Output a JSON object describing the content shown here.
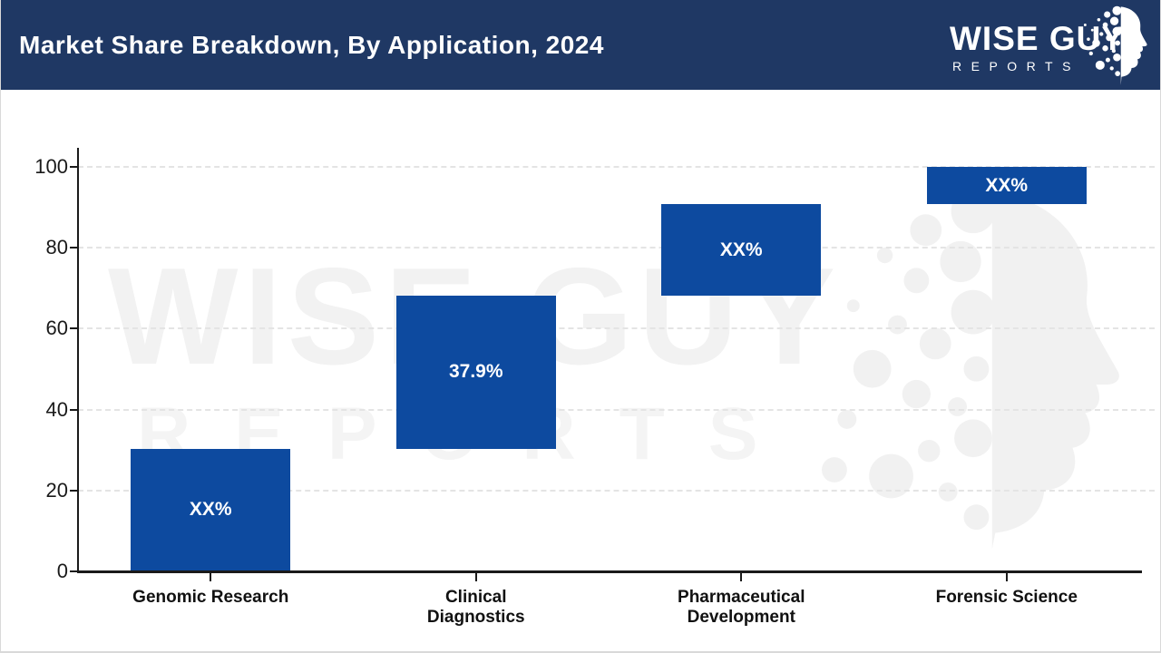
{
  "header": {
    "title": "Market Share Breakdown, By Application, 2024",
    "logo": {
      "line1": "WISE GUY",
      "line2": "REPORTS"
    }
  },
  "watermark": {
    "line1": "WISE GUY",
    "line2": "REPORTS"
  },
  "chart_data": {
    "type": "bar",
    "subtype": "floating-waterfall",
    "title": "Market Share Breakdown, By Application, 2024",
    "categories": [
      [
        "Genomic Research"
      ],
      [
        "Clinical",
        "Diagnostics"
      ],
      [
        "Pharmaceutical",
        "Development"
      ],
      [
        "Forensic Science"
      ]
    ],
    "segments": [
      {
        "start": 0,
        "end": 30.3,
        "value": 30.3,
        "label": "XX%"
      },
      {
        "start": 30.3,
        "end": 68.2,
        "value": 37.9,
        "label": "37.9%"
      },
      {
        "start": 68.2,
        "end": 90.7,
        "value": 22.5,
        "label": "XX%"
      },
      {
        "start": 90.7,
        "end": 100,
        "value": 9.3,
        "label": "XX%"
      }
    ],
    "xlabel": "",
    "ylabel": "",
    "ylim": [
      0,
      100
    ],
    "yticks": [
      0,
      20,
      40,
      60,
      80,
      100
    ],
    "grid": true,
    "legend": "none",
    "bar_color": "#0d4a9f",
    "bar_label_color": "#ffffff"
  },
  "colors": {
    "header_bg": "#1f3864",
    "bar": "#0d4a9f",
    "watermark": "#f2f2f2",
    "axis": "#1a1a1a",
    "gridline": "#e4e4e4"
  }
}
